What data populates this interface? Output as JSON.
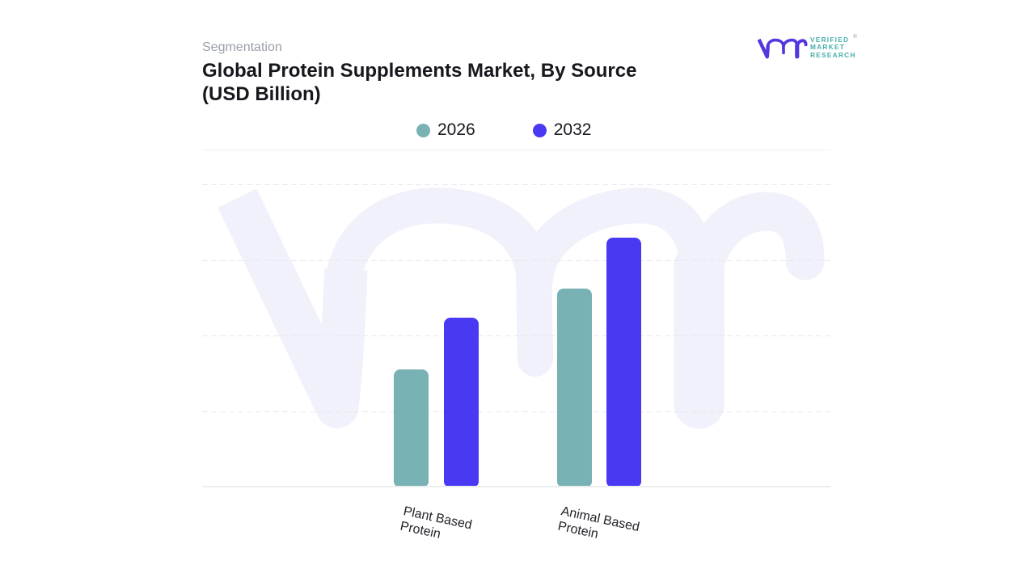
{
  "header": {
    "section_label": "Segmentation",
    "title": "Global Protein Supplements Market, By Source (USD Billion)"
  },
  "brand": {
    "name": "Verified Market Research",
    "lines": [
      "VERIFIED",
      "MARKET",
      "RESEARCH"
    ],
    "registered_mark": "®",
    "mark_color": "#5238dd",
    "text_color": "#45aeaa"
  },
  "chart_data": {
    "type": "bar",
    "title": "Global Protein Supplements Market, By Source (USD Billion)",
    "categories": [
      "Plant Based Protein",
      "Animal Based Protein"
    ],
    "series": [
      {
        "name": "2026",
        "color": "#78b2b5",
        "values": [
          1.55,
          2.62
        ]
      },
      {
        "name": "2032",
        "color": "#4939f3",
        "values": [
          2.24,
          3.29
        ]
      }
    ],
    "ylim": [
      0,
      4
    ],
    "gridline_values": [
      1,
      2,
      3,
      4
    ],
    "grid_style": "dashed",
    "legend_position": "top",
    "watermark": "vmr",
    "watermark_color": "#f0f1fa"
  }
}
